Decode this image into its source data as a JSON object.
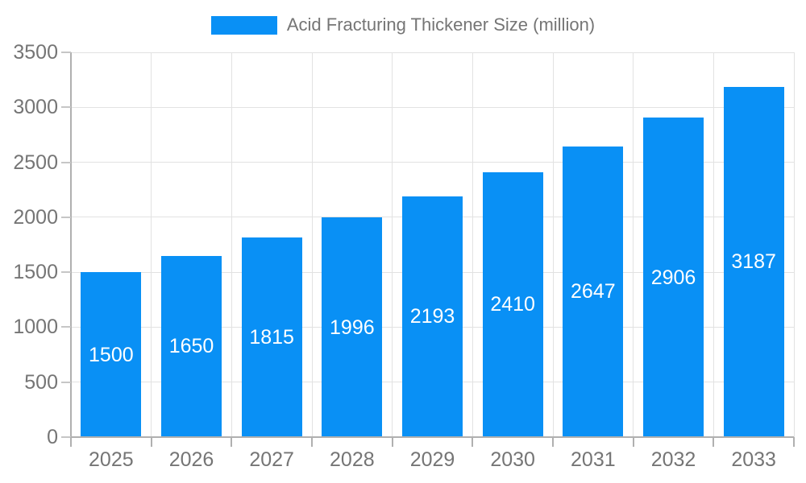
{
  "legend": {
    "label": "Acid Fracturing Thickener Size (million)"
  },
  "chart_data": {
    "type": "bar",
    "title": "Acid Fracturing Thickener Size (million)",
    "categories": [
      "2025",
      "2026",
      "2027",
      "2028",
      "2029",
      "2030",
      "2031",
      "2032",
      "2033"
    ],
    "values": [
      1500,
      1650,
      1815,
      1996,
      2193,
      2410,
      2647,
      2906,
      3187
    ],
    "xlabel": "",
    "ylabel": "",
    "ylim": [
      0,
      3500
    ],
    "ytick_step": 500,
    "yticks": [
      0,
      500,
      1000,
      1500,
      2000,
      2500,
      3000,
      3500
    ],
    "grid": true,
    "legend_position": "top-center",
    "value_labels": "inside-center-white"
  },
  "colors": {
    "bar": "#0990f5",
    "axis_text": "#757575",
    "gridline": "#e2e2e2",
    "axis_line": "#b0b0b0",
    "value_label": "#ffffff",
    "background": "#ffffff"
  }
}
